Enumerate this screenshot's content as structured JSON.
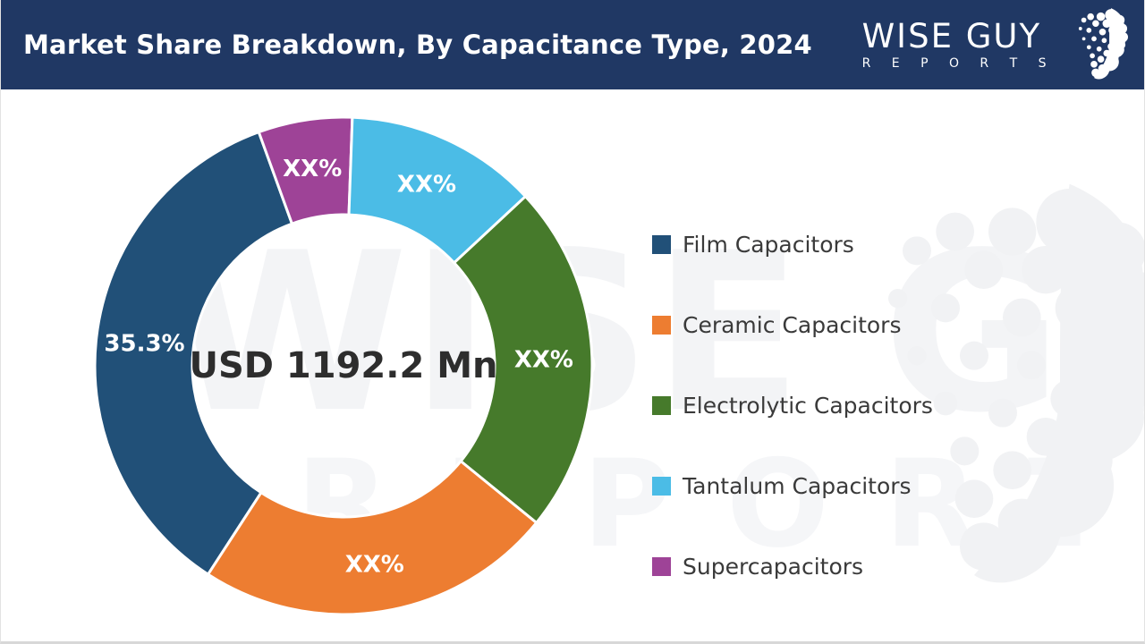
{
  "header": {
    "title": "Market Share Breakdown, By Capacitance Type, 2024",
    "bg_color": "#203864",
    "logo": {
      "line1": "WISE GUY",
      "line2": "R E P O R T S"
    }
  },
  "watermark": {
    "line1": "WISE GUY",
    "line2": "REPORTS"
  },
  "chart_data": {
    "type": "pie",
    "subtype": "donut",
    "title": "Market Share Breakdown, By Capacitance Type, 2024",
    "center_label": "USD 1192.2 Mn",
    "segments": [
      {
        "label": "Film Capacitors",
        "display_value": "35.3%",
        "value_pct": 35.3,
        "color": "#215078"
      },
      {
        "label": "Ceramic Capacitors",
        "display_value": "XX%",
        "value_pct": 23.3,
        "color": "#ED7D31"
      },
      {
        "label": "Electrolytic Capacitors",
        "display_value": "XX%",
        "value_pct": 22.8,
        "color": "#467A2B"
      },
      {
        "label": "Tantalum Capacitors",
        "display_value": "XX%",
        "value_pct": 12.5,
        "color": "#4BBCE6"
      },
      {
        "label": "Supercapacitors",
        "display_value": "XX%",
        "value_pct": 6.1,
        "color": "#9E4397"
      }
    ],
    "layout": {
      "legend_position": "right",
      "start_angle_deg": 213,
      "draw_order": [
        0,
        4,
        3,
        2,
        1
      ],
      "center": [
        383,
        409
      ],
      "outer_radius": 278,
      "inner_radius": 169,
      "label_radius": 224,
      "gap_stroke": "#ffffff",
      "gap_width": 3
    }
  }
}
